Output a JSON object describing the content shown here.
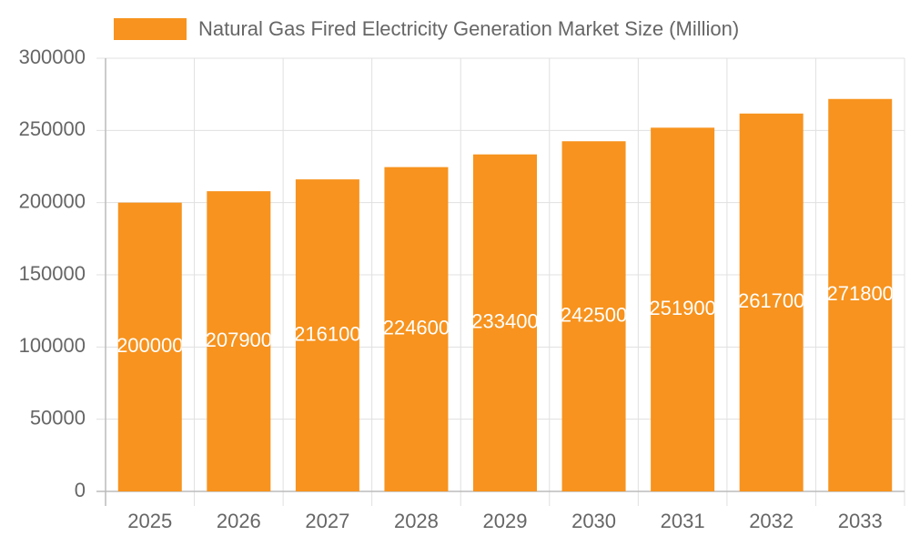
{
  "chart_data": {
    "type": "bar",
    "categories": [
      "2025",
      "2026",
      "2027",
      "2028",
      "2029",
      "2030",
      "2031",
      "2032",
      "2033"
    ],
    "series": [
      {
        "name": "Natural Gas Fired Electricity Generation Market Size (Million)",
        "color": "#f7931e",
        "values": [
          200000,
          207900,
          216100,
          224600,
          233400,
          242500,
          251900,
          261700,
          271800
        ]
      }
    ],
    "ylim": [
      0,
      300000
    ],
    "yticks": [
      0,
      50000,
      100000,
      150000,
      200000,
      250000,
      300000
    ],
    "grid": true,
    "legend": "top"
  }
}
